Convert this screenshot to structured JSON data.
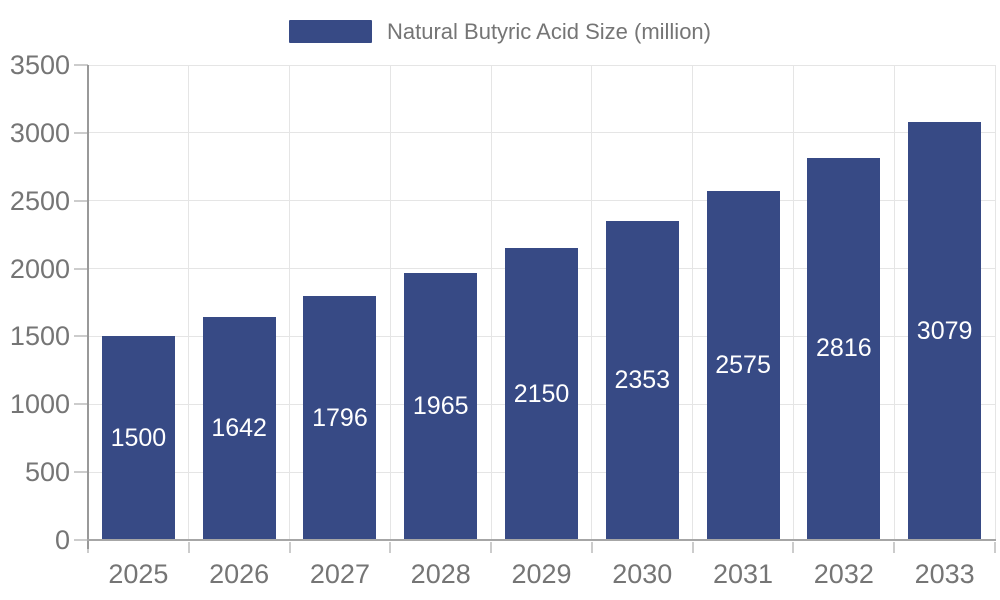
{
  "legend": {
    "items": [
      {
        "label": "Natural Butyric Acid Size (million)",
        "color": "#374a85"
      }
    ]
  },
  "chart_data": {
    "type": "bar",
    "title": "Natural Butyric Acid Size (million)",
    "categories": [
      "2025",
      "2026",
      "2027",
      "2028",
      "2029",
      "2030",
      "2031",
      "2032",
      "2033"
    ],
    "series": [
      {
        "name": "Natural Butyric Acid Size (million)",
        "values": [
          1500,
          1642,
          1796,
          1965,
          2150,
          2353,
          2575,
          2816,
          3079
        ]
      }
    ],
    "xlabel": "",
    "ylabel": "",
    "ylim": [
      0,
      3500
    ],
    "yticks": [
      0,
      500,
      1000,
      1500,
      2000,
      2500,
      3000,
      3500
    ],
    "grid": true,
    "legend_position": "top",
    "value_label_position": "inside-center"
  },
  "colors": {
    "bar": "#374a85",
    "bar_label": "#ffffff",
    "axis_line": "#999999",
    "gridline": "#e5e5e5",
    "tick": "#cccccc",
    "axis_text": "#757575",
    "legend_text": "#757575",
    "background": "#ffffff"
  }
}
